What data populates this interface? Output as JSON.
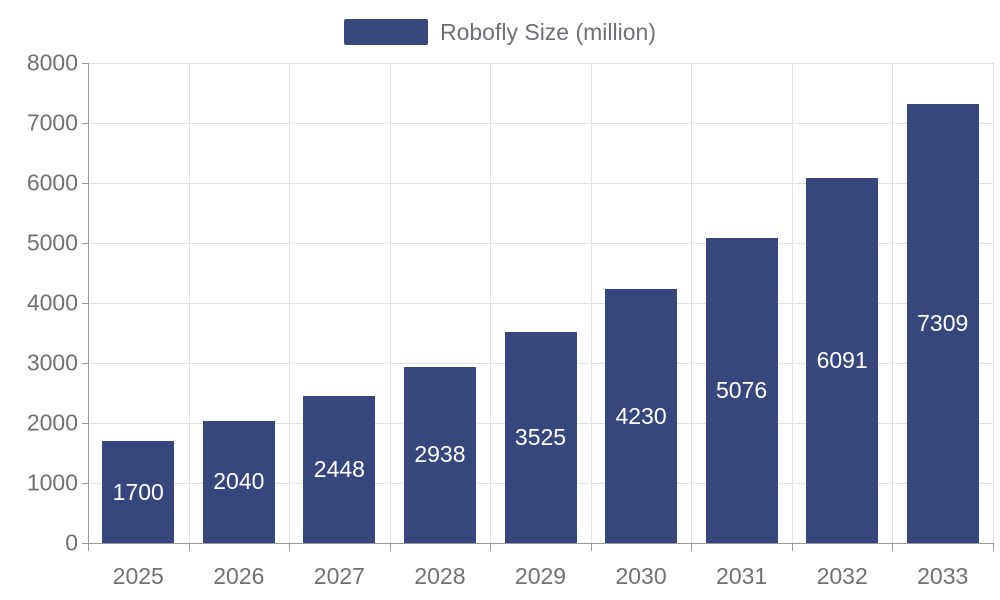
{
  "chart_data": {
    "type": "bar",
    "title": "",
    "legend": "Robofly Size (million)",
    "legend_position": "top-center",
    "series": [
      {
        "name": "Robofly Size (million)",
        "values": [
          1700,
          2040,
          2448,
          2938,
          3525,
          4230,
          5076,
          6091,
          7309
        ]
      }
    ],
    "categories": [
      "2025",
      "2026",
      "2027",
      "2028",
      "2029",
      "2030",
      "2031",
      "2032",
      "2033"
    ],
    "xlabel": "",
    "ylabel": "",
    "ylim": [
      0,
      8000
    ],
    "y_ticks": [
      0,
      1000,
      2000,
      3000,
      4000,
      5000,
      6000,
      7000,
      8000
    ],
    "grid": true,
    "value_labels": "inside-center",
    "colors": {
      "bar": "#35477D",
      "value_label": "#FFFFFF",
      "axis_line": "#999999",
      "gridline": "#E0E0E0",
      "axis_label": "#707175",
      "legend_text": "#6E7079",
      "background": "#FFFFFF"
    }
  }
}
